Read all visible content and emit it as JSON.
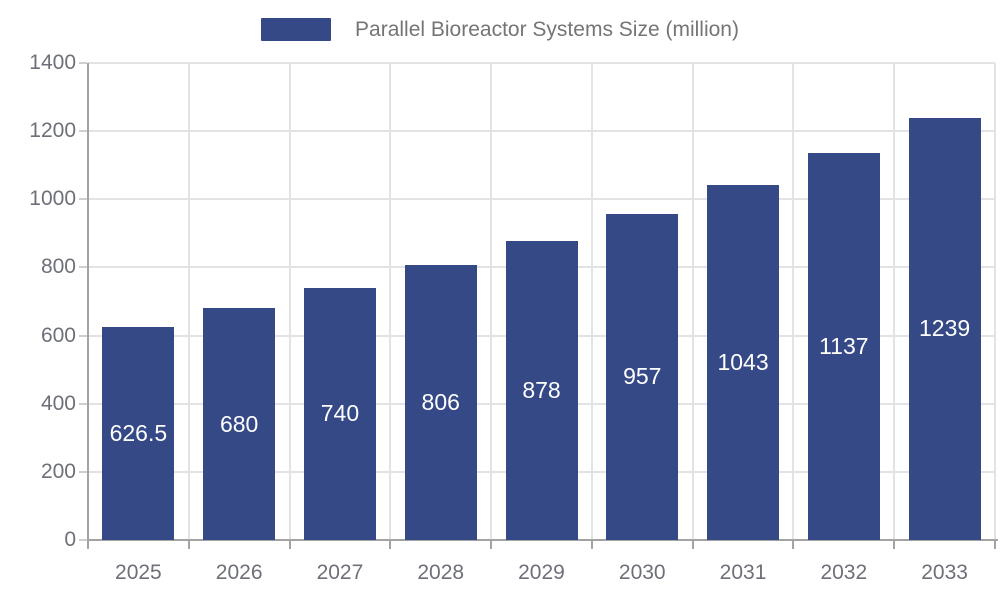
{
  "legend": {
    "label": "Parallel Bioreactor Systems Size (million)"
  },
  "chart_data": {
    "type": "bar",
    "title": "Parallel Bioreactor Systems Size (million)",
    "categories": [
      "2025",
      "2026",
      "2027",
      "2028",
      "2029",
      "2030",
      "2031",
      "2032",
      "2033"
    ],
    "values": [
      626.5,
      680,
      740,
      806,
      878,
      957,
      1043,
      1137,
      1239
    ],
    "value_labels": [
      "626.5",
      "680",
      "740",
      "806",
      "878",
      "957",
      "1043",
      "1137",
      "1239"
    ],
    "xlabel": "",
    "ylabel": "",
    "ylim": [
      0,
      1400
    ],
    "ytick_step": 200,
    "ytick_labels": [
      "0",
      "200",
      "400",
      "600",
      "800",
      "1000",
      "1200",
      "1400"
    ],
    "grid": true,
    "legend_position": "top-center",
    "colors": {
      "bar": "#344985",
      "value_label": "#ffffff",
      "axis_label": "#6e7079",
      "legend_text": "#757575",
      "grid_line": "#e3e3e3",
      "axis_line": "#a3a3a3",
      "y_tick": "#cfcfcf",
      "background": "#ffffff"
    }
  }
}
